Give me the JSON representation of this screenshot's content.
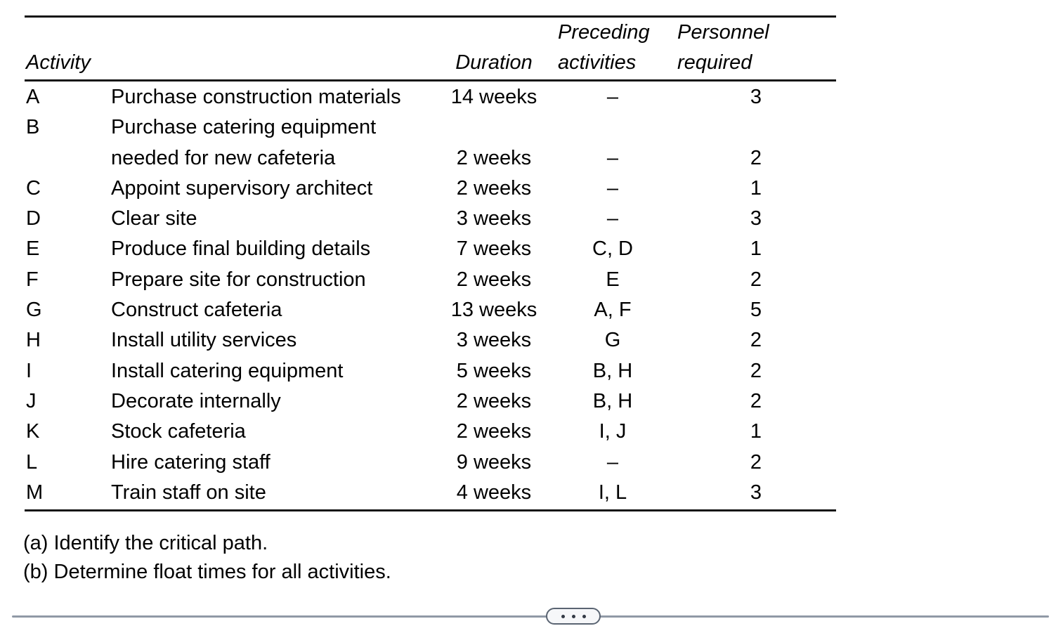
{
  "table": {
    "headers": {
      "activity": "Activity",
      "duration": "Duration",
      "preceding_line1": "Preceding",
      "preceding_line2": "activities",
      "personnel_line1": "Personnel",
      "personnel_line2": "required"
    },
    "rows": [
      {
        "id": "A",
        "description": [
          "Purchase construction materials"
        ],
        "duration": "14 weeks",
        "preceding": "–",
        "personnel": "3"
      },
      {
        "id": "B",
        "description": [
          "Purchase catering equipment",
          "needed for new cafeteria"
        ],
        "duration": "2 weeks",
        "preceding": "–",
        "personnel": "2"
      },
      {
        "id": "C",
        "description": [
          "Appoint supervisory architect"
        ],
        "duration": "2 weeks",
        "preceding": "–",
        "personnel": "1"
      },
      {
        "id": "D",
        "description": [
          "Clear site"
        ],
        "duration": "3 weeks",
        "preceding": "–",
        "personnel": "3"
      },
      {
        "id": "E",
        "description": [
          "Produce final building details"
        ],
        "duration": "7 weeks",
        "preceding": "C, D",
        "personnel": "1"
      },
      {
        "id": "F",
        "description": [
          "Prepare site for construction"
        ],
        "duration": "2 weeks",
        "preceding": "E",
        "personnel": "2"
      },
      {
        "id": "G",
        "description": [
          "Construct cafeteria"
        ],
        "duration": "13 weeks",
        "preceding": "A, F",
        "personnel": "5"
      },
      {
        "id": "H",
        "description": [
          "Install utility services"
        ],
        "duration": "3 weeks",
        "preceding": "G",
        "personnel": "2"
      },
      {
        "id": "I",
        "description": [
          "Install catering equipment"
        ],
        "duration": "5 weeks",
        "preceding": "B, H",
        "personnel": "2"
      },
      {
        "id": "J",
        "description": [
          "Decorate internally"
        ],
        "duration": "2 weeks",
        "preceding": "B, H",
        "personnel": "2"
      },
      {
        "id": "K",
        "description": [
          "Stock cafeteria"
        ],
        "duration": "2 weeks",
        "preceding": "I, J",
        "personnel": "1"
      },
      {
        "id": "L",
        "description": [
          "Hire catering staff"
        ],
        "duration": "9 weeks",
        "preceding": "–",
        "personnel": "2"
      },
      {
        "id": "M",
        "description": [
          "Train staff on site"
        ],
        "duration": "4 weeks",
        "preceding": "I, L",
        "personnel": "3"
      }
    ]
  },
  "questions": {
    "a": "(a) Identify the critical path.",
    "b": "(b) Determine float times for all activities."
  },
  "divider": {
    "ellipsis": "•••",
    "line_color": "#9099a6",
    "pill_border_color": "#5a6472",
    "pill_background": "#f6f7f9",
    "dot_color": "#333a45"
  }
}
